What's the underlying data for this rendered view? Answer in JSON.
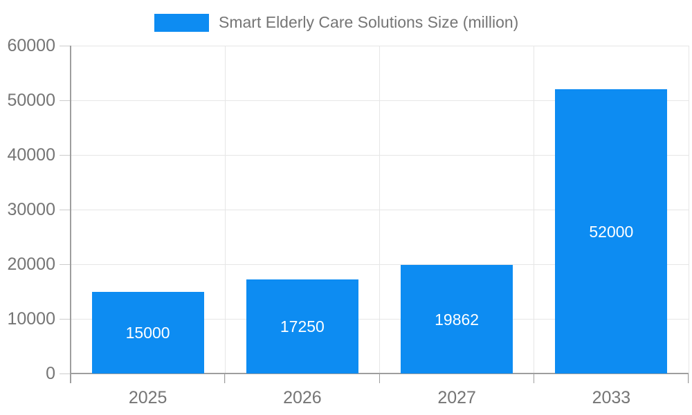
{
  "chart_data": {
    "type": "bar",
    "title": "",
    "legend_label": "Smart Elderly Care Solutions Size (million)",
    "legend_position": "top",
    "categories": [
      "2025",
      "2026",
      "2027",
      "2033"
    ],
    "series": [
      {
        "name": "Smart Elderly Care Solutions Size (million)",
        "values": [
          15000,
          17250,
          19862,
          52000
        ]
      }
    ],
    "value_labels": [
      "15000",
      "17250",
      "19862",
      "52000"
    ],
    "value_label_position": "inside-center",
    "xlabel": "",
    "ylabel": "",
    "ylim": [
      0,
      60000
    ],
    "y_ticks": [
      0,
      10000,
      20000,
      30000,
      40000,
      50000,
      60000
    ],
    "y_tick_labels": [
      "0",
      "10000",
      "20000",
      "30000",
      "40000",
      "50000",
      "60000"
    ],
    "grid": "on"
  },
  "colors": {
    "bar": "#0d8cf2",
    "axis_text": "#757575",
    "gridline": "#e6e6e6",
    "tick_dash": "#cccccc",
    "axis_line": "#9e9e9e",
    "value_text": "#ffffff",
    "background": "#ffffff"
  }
}
